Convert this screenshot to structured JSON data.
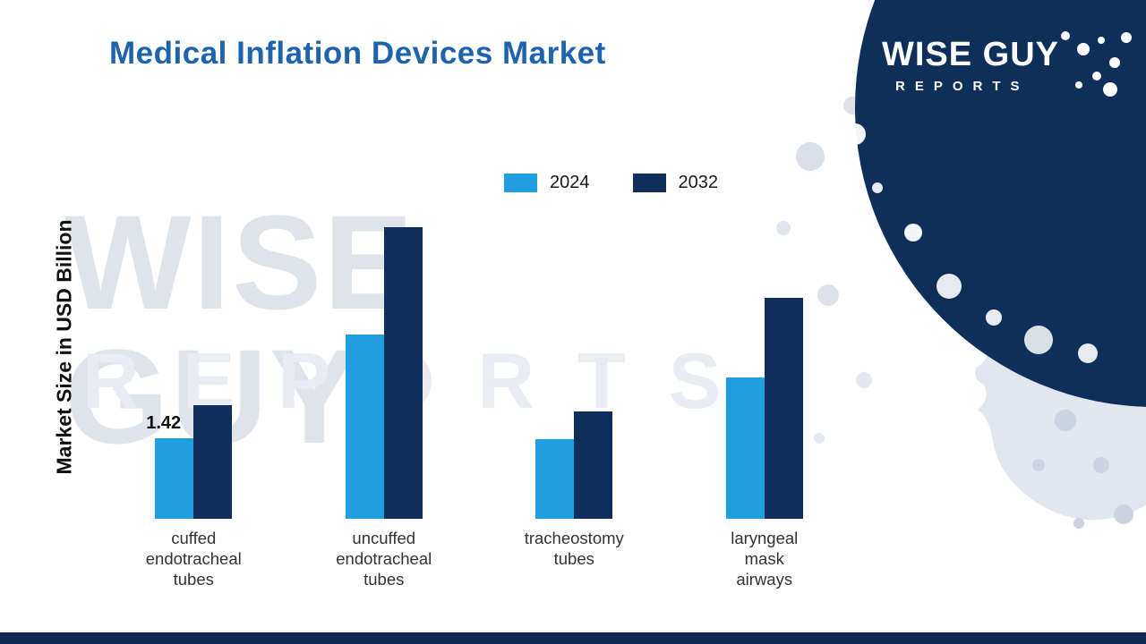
{
  "page": {
    "title": "Medical Inflation Devices Market"
  },
  "branding": {
    "logo_line1": "WISE GUY",
    "logo_line2": "REPORTS"
  },
  "watermark": {
    "line1": "WISE GUY",
    "line2": "REPORTS"
  },
  "colors": {
    "title_blue": "#1d63ae",
    "series_2024": "#1f9fe0",
    "series_2032": "#102e5c",
    "brand_navy": "#0e2f5a",
    "footer_navy": "#0e2b51",
    "watermark_gray": "#dfe3ea"
  },
  "chart_data": {
    "type": "bar",
    "title": "Medical Inflation Devices Market",
    "xlabel": "",
    "ylabel": "Market Size in USD Billion",
    "categories": [
      "cuffed endotracheal tubes",
      "uncuffed endotracheal tubes",
      "tracheostomy tubes",
      "laryngeal mask airways"
    ],
    "series": [
      {
        "name": "2024",
        "color": "#1f9fe0",
        "values": [
          1.42,
          3.25,
          1.4,
          2.5
        ]
      },
      {
        "name": "2032",
        "color": "#102e5c",
        "values": [
          2.0,
          5.15,
          1.9,
          3.9
        ]
      }
    ],
    "ylim": [
      0,
      6
    ],
    "grid": false,
    "legend_position": "top",
    "annotations": [
      {
        "category_index": 0,
        "series_index": 0,
        "text": "1.42"
      }
    ]
  }
}
